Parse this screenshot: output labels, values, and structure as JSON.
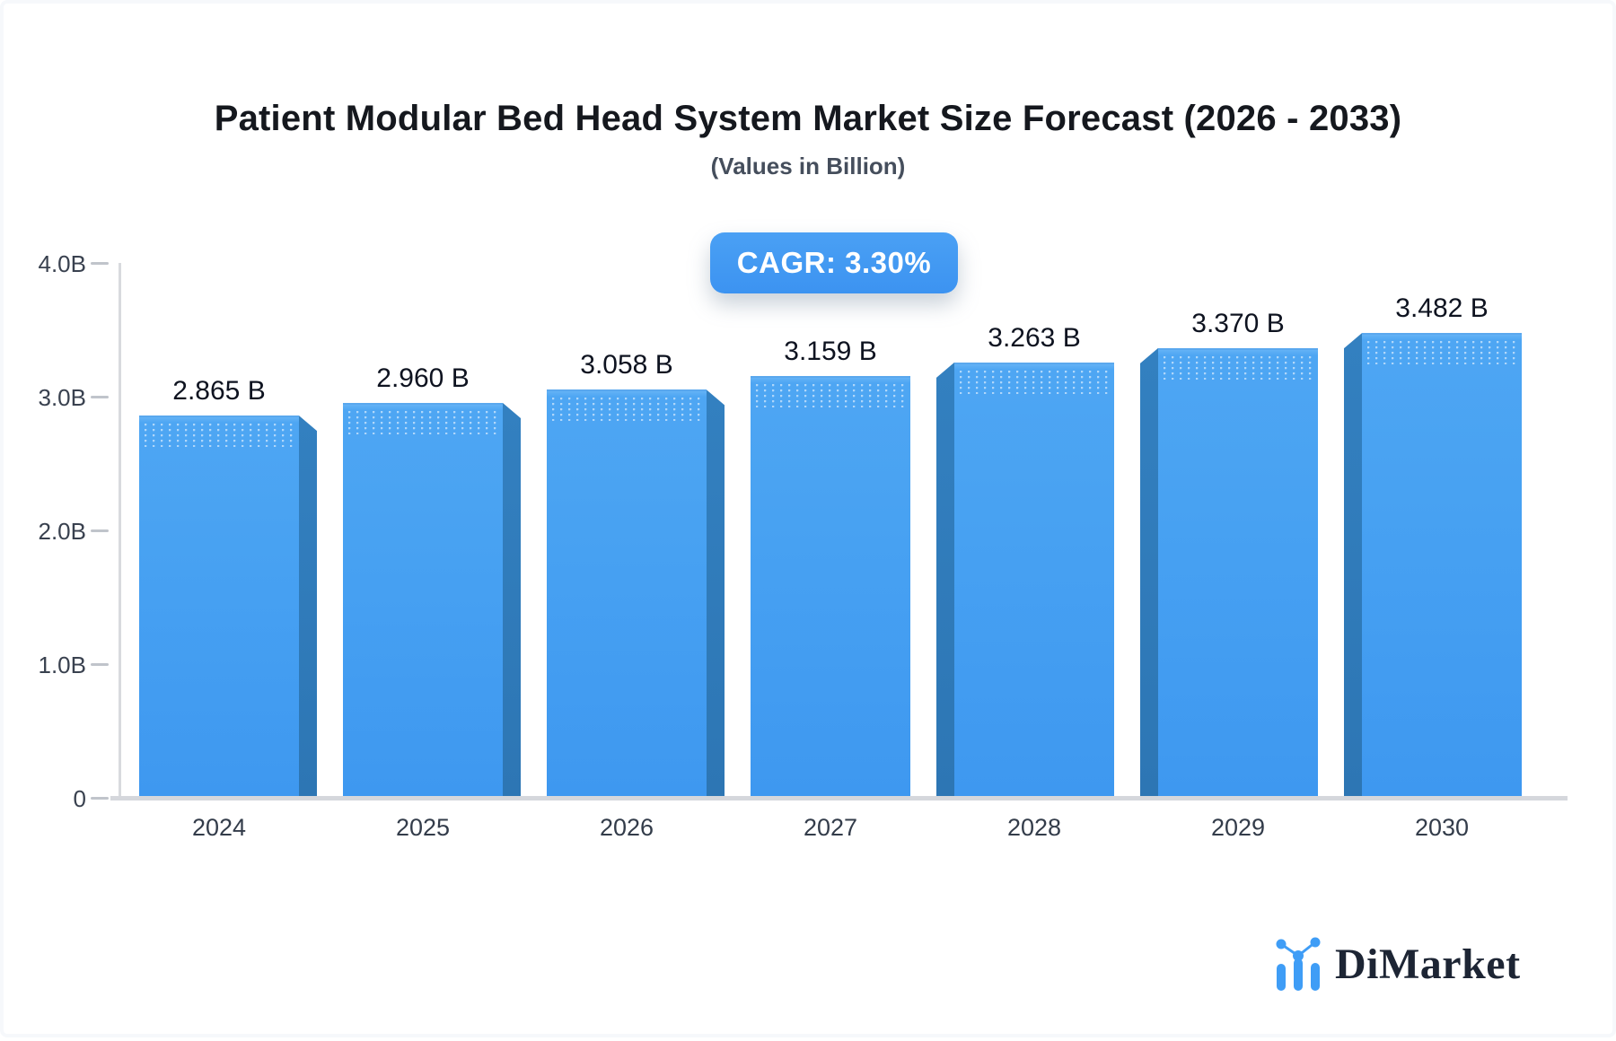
{
  "header": {
    "title": "Patient Modular Bed Head System Market Size Forecast (2026 - 2033)",
    "subtitle": "(Values in Billion)"
  },
  "badge": {
    "label": "CAGR: 3.30%"
  },
  "chart_data": {
    "type": "bar",
    "title": "Patient Modular Bed Head System Market Size Forecast (2026 - 2033)",
    "subtitle": "(Values in Billion)",
    "cagr_label": "CAGR: 3.30%",
    "categories": [
      "2024",
      "2025",
      "2026",
      "2027",
      "2028",
      "2029",
      "2030"
    ],
    "values": [
      2.865,
      2.96,
      3.058,
      3.159,
      3.263,
      3.37,
      3.482
    ],
    "value_labels": [
      "2.865 B",
      "2.960 B",
      "3.058 B",
      "3.159 B",
      "3.263 B",
      "3.370 B",
      "3.482 B"
    ],
    "unit": "Billion",
    "ylim": [
      0,
      4.0
    ],
    "yticks": [
      {
        "value": 4.0,
        "label": "4.0B"
      },
      {
        "value": 3.0,
        "label": "3.0B"
      },
      {
        "value": 2.0,
        "label": "2.0B"
      },
      {
        "value": 1.0,
        "label": "1.0B"
      },
      {
        "value": 0.0,
        "label": "0"
      }
    ],
    "grid": false,
    "legend": "none",
    "colors": {
      "bar_face": "#46a0f2",
      "bar_face_top": "#63b2f6",
      "bar_side_3d": "#2f7ab8",
      "axis_line": "#d8dade",
      "baseline": "#d5d7dc",
      "tick_dash": "#c0c4cb",
      "tick_text": "#39414f",
      "value_text": "#0e1320",
      "badge_bg": "#4197f3",
      "badge_text": "#ffffff",
      "title_text": "#15181e",
      "subtitle_text": "#454e5c",
      "logo_blue": "#3f9df6",
      "logo_navy": "#1d2534"
    }
  },
  "logo": {
    "text": "DiMarket",
    "icon": "mini-bar-chart-icon"
  }
}
